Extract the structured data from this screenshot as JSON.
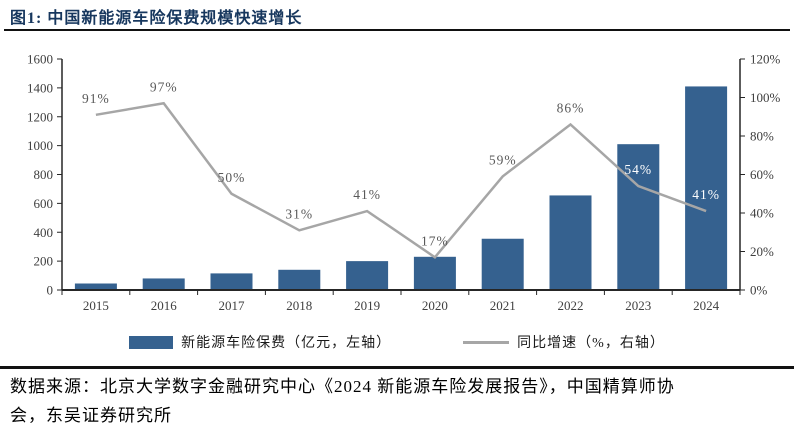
{
  "header": {
    "title": "图1:  中国新能源车险保费规模快速增长"
  },
  "chart_data": {
    "type": "bar",
    "title": "中国新能源车险保费规模快速增长",
    "categories": [
      "2015",
      "2016",
      "2017",
      "2018",
      "2019",
      "2020",
      "2021",
      "2022",
      "2023",
      "2024"
    ],
    "series": [
      {
        "name": "新能源车险保费（亿元，左轴）",
        "type": "bar",
        "axis": "left",
        "color": "#35618F",
        "values": [
          45,
          80,
          115,
          140,
          200,
          230,
          355,
          655,
          1010,
          1410
        ]
      },
      {
        "name": "同比增速（%，右轴）",
        "type": "line",
        "axis": "right",
        "color": "#A6A6A6",
        "values": [
          91,
          97,
          50,
          31,
          41,
          17,
          59,
          86,
          54,
          41
        ],
        "point_labels": [
          "91%",
          "97%",
          "50%",
          "31%",
          "41%",
          "17%",
          "59%",
          "86%",
          "54%",
          "41%"
        ],
        "point_label_colors": [
          "#595959",
          "#595959",
          "#595959",
          "#595959",
          "#595959",
          "#595959",
          "#595959",
          "#595959",
          "#FFFFFF",
          "#FFFFFF"
        ]
      }
    ],
    "left_axis": {
      "min": 0,
      "max": 1600,
      "step": 200
    },
    "right_axis": {
      "min": 0,
      "max": 120,
      "step": 20,
      "suffix": "%"
    },
    "grid": false,
    "legend_position": "bottom"
  },
  "legend": {
    "items": [
      {
        "label": "新能源车险保费（亿元，左轴）",
        "swatch": "bar"
      },
      {
        "label": "同比增速（%，右轴）",
        "swatch": "line"
      }
    ]
  },
  "footer": {
    "lines": [
      "数据来源：北京大学数字金融研究中心《2024 新能源车险发展报告》，中国精算师协",
      "会，东吴证券研究所"
    ]
  },
  "colors": {
    "title": "#17375E",
    "bar": "#35618F",
    "growth_line": "#A6A6A6",
    "rule": "#111111",
    "axis_line": "#262626",
    "axis_text": "#404040"
  }
}
